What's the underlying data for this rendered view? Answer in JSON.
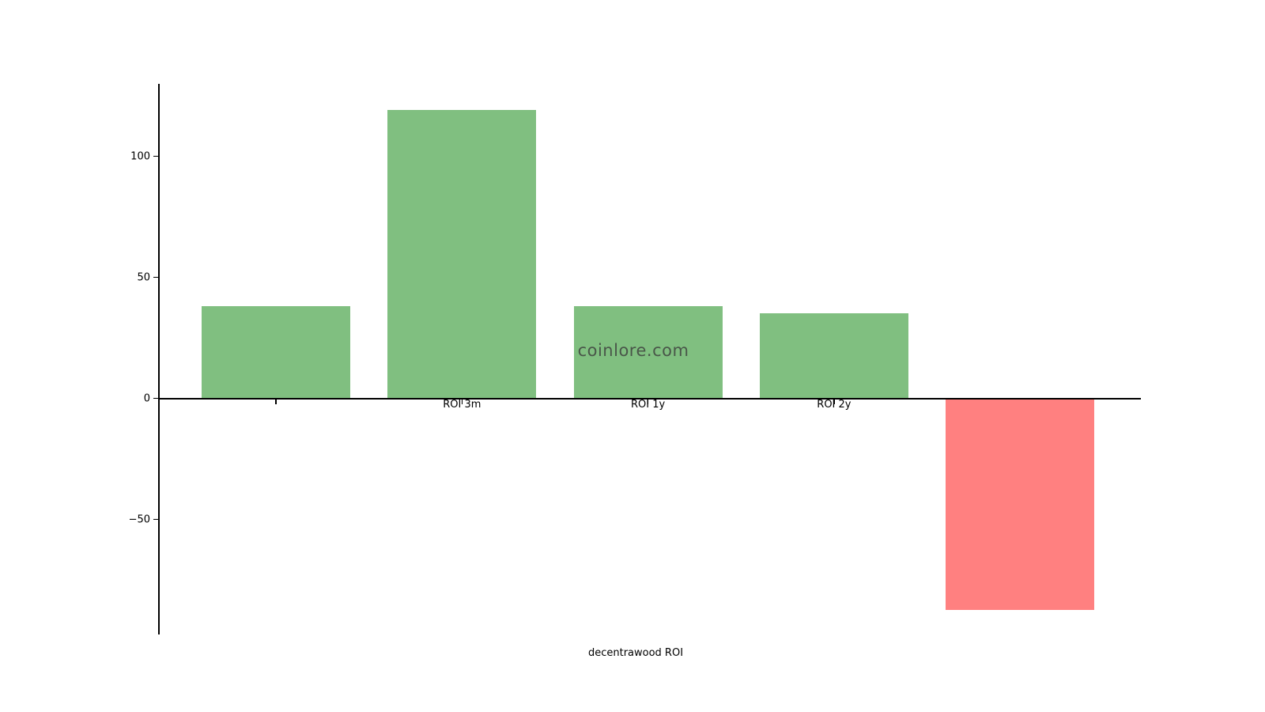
{
  "watermark": "coinlore.com",
  "chart_data": {
    "type": "bar",
    "title": "",
    "xlabel": "decentrawood ROI",
    "ylabel": "",
    "categories": [
      "",
      "ROI 3m",
      "ROI 1y",
      "ROI 2y",
      ""
    ],
    "values": [
      38,
      119,
      38,
      35,
      -87
    ],
    "bar_colors": [
      "#80bf80",
      "#80bf80",
      "#80bf80",
      "#80bf80",
      "#ff8080"
    ],
    "x_ticks_shown": [
      true,
      true,
      true,
      true,
      false
    ],
    "y_ticks": [
      100,
      50,
      0,
      -50
    ],
    "ylim": [
      -97,
      130
    ],
    "grid": false,
    "legend": "none",
    "background_color": "#ffffff",
    "axis_color": "#000000",
    "positive_color": "#80bf80",
    "negative_color": "#ff8080",
    "watermark_color": "#3c3c3c"
  }
}
